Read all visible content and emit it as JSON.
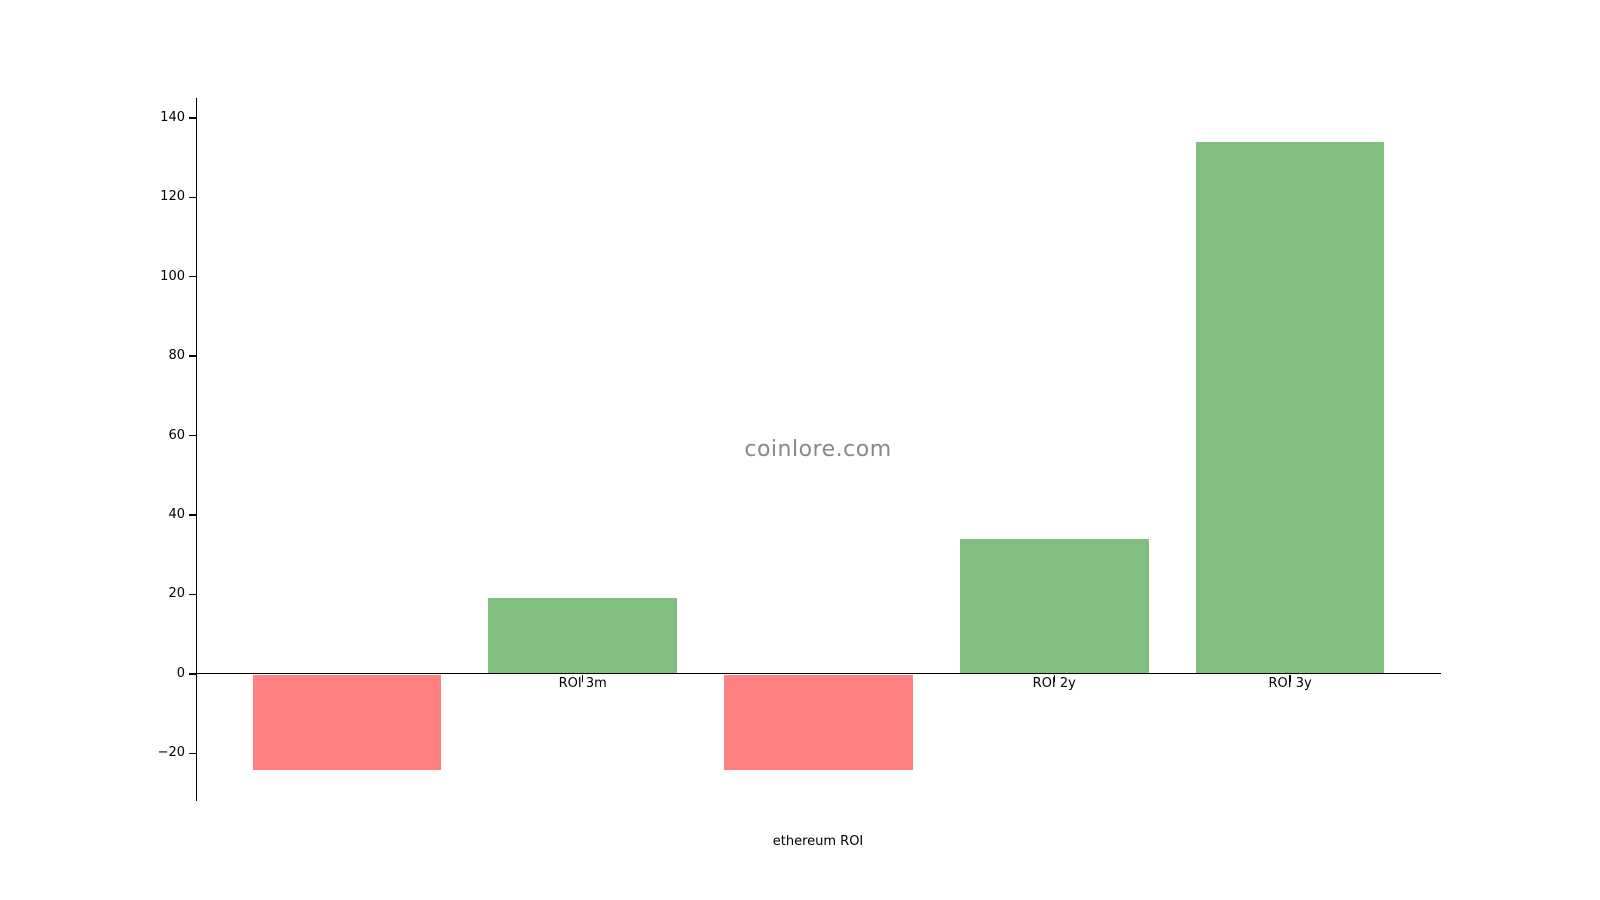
{
  "chart_data": {
    "type": "bar",
    "title": "",
    "xlabel": "ethereum ROI",
    "ylabel": "",
    "watermark": "coinlore.com",
    "categories": [
      "",
      "ROI 3m",
      "",
      "ROI 2y",
      "ROI 3y"
    ],
    "values": [
      -24,
      19,
      -24,
      34,
      134
    ],
    "bar_colors": [
      "#ff8080",
      "#80bf80",
      "#ff8080",
      "#80bf80",
      "#80bf80"
    ],
    "positive_color": "#80bf80",
    "negative_color": "#ff8080",
    "y_ticks": [
      140,
      120,
      100,
      80,
      60,
      40,
      20,
      0,
      -20
    ],
    "ylim": [
      -32,
      145
    ],
    "xlim": [
      -0.64,
      4.64
    ],
    "bar_width_units": 0.8,
    "grid": false,
    "legend": null,
    "axis_color": "#000000",
    "background_color": "#ffffff"
  }
}
